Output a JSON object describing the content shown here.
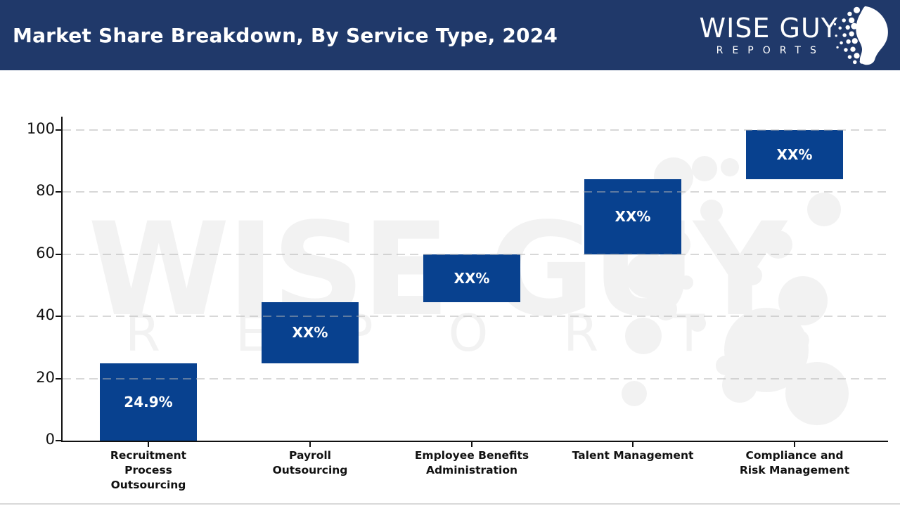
{
  "header": {
    "title": "Market Share Breakdown, By Service Type, 2024",
    "logo": {
      "line1": "WISE GUY",
      "line2": "REPORTS"
    }
  },
  "watermark": {
    "line1": "WISE GUY",
    "line2": "REPORTS"
  },
  "colors": {
    "header_bg": "#20396a",
    "header_text": "#ffffff",
    "bar": "#08418f",
    "bar_label": "#ffffff",
    "axis": "#111111",
    "grid_dash": "rgba(178,178,178,0.5)",
    "watermark": "#f2f2f2"
  },
  "chart_data": {
    "type": "bar",
    "subtype": "floating-waterfall",
    "title": "Market Share Breakdown, By Service Type, 2024",
    "xlabel": "",
    "ylabel": "",
    "ylim": [
      0,
      100
    ],
    "yticks": [
      0,
      20,
      40,
      60,
      80,
      100
    ],
    "grid": "horizontal-dashed",
    "legend": "none",
    "bar_color": "#08418f",
    "label_color": "#ffffff",
    "bars": [
      {
        "category": "Recruitment Process Outsourcing",
        "category_lines": [
          "Recruitment",
          "Process",
          "Outsourcing"
        ],
        "start": 0,
        "end": 24.9,
        "label": "24.9%"
      },
      {
        "category": "Payroll Outsourcing",
        "category_lines": [
          "Payroll",
          "Outsourcing"
        ],
        "start": 24.9,
        "end": 44.6,
        "label": "XX%"
      },
      {
        "category": "Employee Benefits Administration",
        "category_lines": [
          "Employee Benefits",
          "Administration"
        ],
        "start": 44.6,
        "end": 60.0,
        "label": "XX%"
      },
      {
        "category": "Talent Management",
        "category_lines": [
          "Talent Management"
        ],
        "start": 60.0,
        "end": 84.2,
        "label": "XX%"
      },
      {
        "category": "Compliance and Risk Management",
        "category_lines": [
          "Compliance and",
          "Risk Management"
        ],
        "start": 84.2,
        "end": 100.0,
        "label": "XX%"
      }
    ]
  }
}
